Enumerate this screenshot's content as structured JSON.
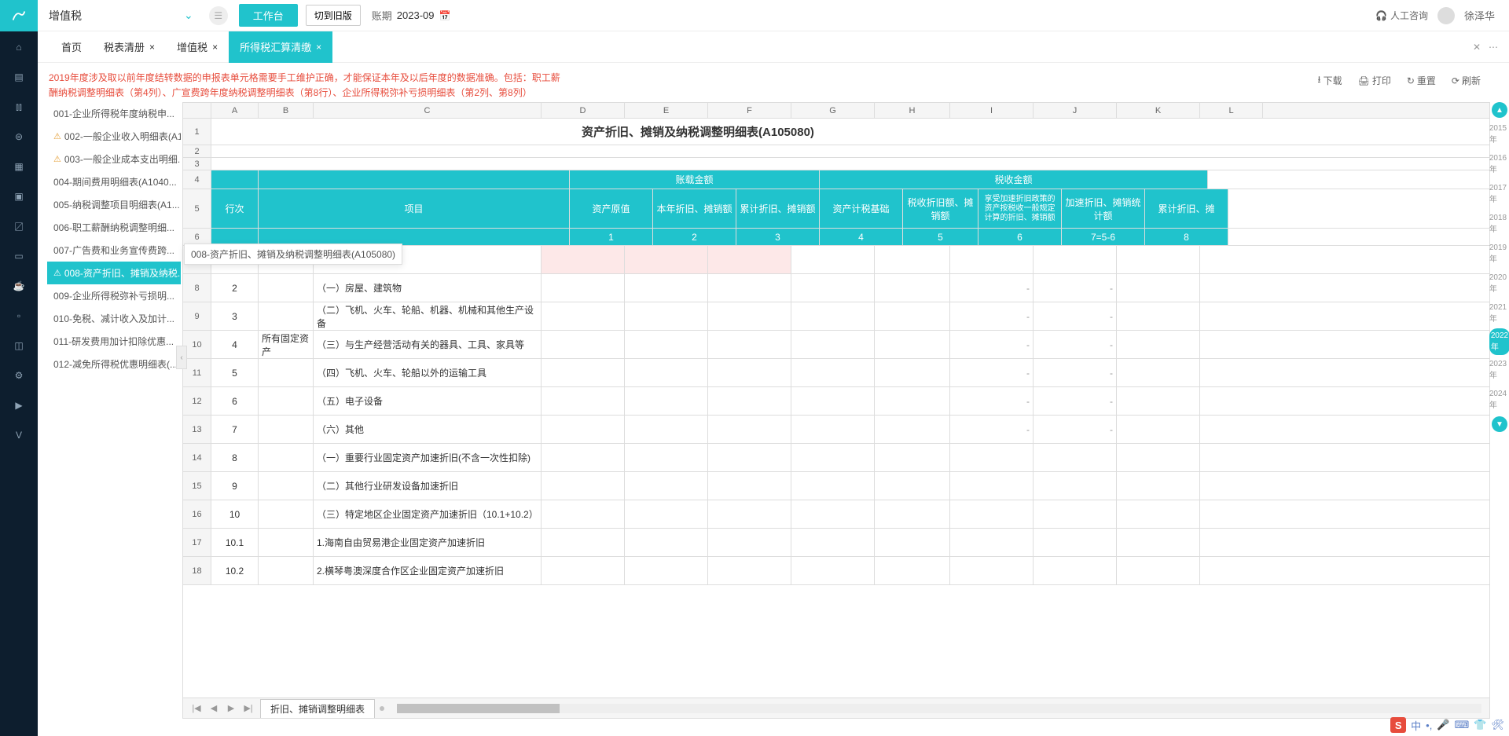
{
  "header": {
    "company": "增值税",
    "workbench": "工作台",
    "switch_old": "切到旧版",
    "period_label": "账期",
    "period_value": "2023-09",
    "consult": "人工咨询",
    "username": "徐泽华"
  },
  "tabs": [
    {
      "label": "首页",
      "closable": false
    },
    {
      "label": "税表清册",
      "closable": true
    },
    {
      "label": "增值税",
      "closable": true
    },
    {
      "label": "所得税汇算清缴",
      "closable": true,
      "active": true
    }
  ],
  "notice": "2019年度涉及取以前年度结转数据的申报表单元格需要手工维护正确，才能保证本年及以后年度的数据准确。包括：职工薪酬纳税调整明细表（第4列）、广宣费跨年度纳税调整明细表（第8行）、企业所得税弥补亏损明细表（第2列、第8列）",
  "actions": {
    "download": "下载",
    "print": "打印",
    "reset": "重置",
    "refresh": "刷新"
  },
  "formList": [
    {
      "label": "001-企业所得税年度纳税申..."
    },
    {
      "label": "002-一般企业收入明细表(A1...",
      "warn": true
    },
    {
      "label": "003-一般企业成本支出明细...",
      "warn": true
    },
    {
      "label": "004-期间费用明细表(A1040..."
    },
    {
      "label": "005-纳税调整项目明细表(A1..."
    },
    {
      "label": "006-职工薪酬纳税调整明细..."
    },
    {
      "label": "007-广告费和业务宣传费跨..."
    },
    {
      "label": "008-资产折旧、摊销及纳税...",
      "warn": true,
      "selected": true
    },
    {
      "label": "009-企业所得税弥补亏损明..."
    },
    {
      "label": "010-免税、减计收入及加计..."
    },
    {
      "label": "011-研发费用加计扣除优惠..."
    },
    {
      "label": "012-减免所得税优惠明细表(..."
    }
  ],
  "tooltip": "008-资产折旧、摊销及纳税调整明细表(A105080)",
  "sheet": {
    "title": "资产折旧、摊销及纳税调整明细表(A105080)",
    "cols": [
      "A",
      "B",
      "C",
      "D",
      "E",
      "F",
      "G",
      "H",
      "I",
      "J",
      "K",
      "L"
    ],
    "header_group1": {
      "book": "账载金额",
      "tax": "税收金额"
    },
    "header_row": {
      "lineNo": "行次",
      "item": "项目",
      "c1": "资产原值",
      "c2": "本年折旧、摊销额",
      "c3": "累计折旧、摊销额",
      "c4": "资产计税基础",
      "c5": "税收折旧额、摊销额",
      "c6": "享受加速折旧政策的资产按税收一般规定计算的折旧、摊销额",
      "c7": "加速折旧、摊销统计额",
      "c8": "累计折旧、摊"
    },
    "num_row": {
      "n1": "1",
      "n2": "2",
      "n3": "3",
      "n4": "4",
      "n5": "5",
      "n6": "6",
      "n7": "7=5-6",
      "n8": "8"
    },
    "rows": [
      {
        "r": "7",
        "n": "1",
        "b": "",
        "item": "",
        "pink": true
      },
      {
        "r": "8",
        "n": "2",
        "b_span_label": "所有固定资产",
        "item": "（一）房屋、建筑物"
      },
      {
        "r": "9",
        "n": "3",
        "item": "（二）飞机、火车、轮船、机器、机械和其他生产设备"
      },
      {
        "r": "10",
        "n": "4",
        "item": "（三）与生产经营活动有关的器具、工具、家具等"
      },
      {
        "r": "11",
        "n": "5",
        "item": "（四）飞机、火车、轮船以外的运输工具"
      },
      {
        "r": "12",
        "n": "6",
        "item": "（五）电子设备"
      },
      {
        "r": "13",
        "n": "7",
        "item": "（六）其他"
      },
      {
        "r": "14",
        "n": "8",
        "item": "（一）重要行业固定资产加速折旧(不含一次性扣除)"
      },
      {
        "r": "15",
        "n": "9",
        "item": "（二）其他行业研发设备加速折旧"
      },
      {
        "r": "16",
        "n": "10",
        "item": "（三）特定地区企业固定资产加速折旧（10.1+10.2）"
      },
      {
        "r": "17",
        "n": "10.1",
        "item": "1.海南自由贸易港企业固定资产加速折旧"
      },
      {
        "r": "18",
        "n": "10.2",
        "item": "2.横琴粤澳深度合作区企业固定资产加速折旧"
      }
    ],
    "tab_label": "折旧、摊销调整明细表"
  },
  "years": [
    "2015年",
    "2016年",
    "2017年",
    "2018年",
    "2019年",
    "2020年",
    "2021年",
    "2022年",
    "2023年",
    "2024年"
  ],
  "active_year": "2022年",
  "ime": {
    "logo": "S",
    "mode": "中"
  },
  "colors": {
    "primary": "#20c3cc",
    "danger": "#e74c3c",
    "sidebar": "#0d1e2e"
  }
}
